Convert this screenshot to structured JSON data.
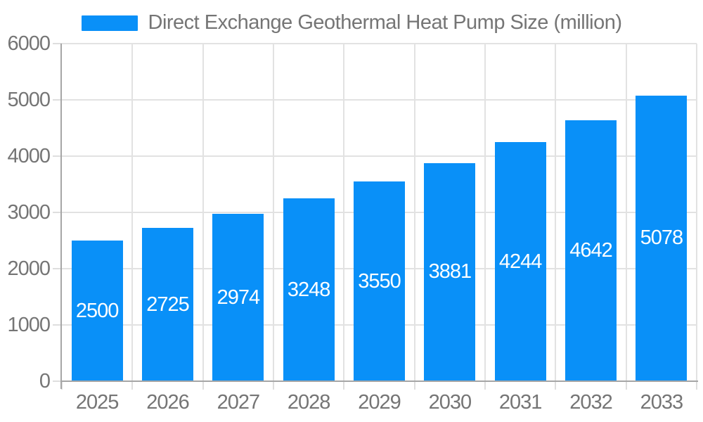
{
  "legend": {
    "label": "Direct Exchange Geothermal Heat Pump Size (million)"
  },
  "colors": {
    "bar": "#0990f8",
    "axis_label": "#757575",
    "value_label": "#ffffff",
    "gridline": "#e2e2e2",
    "tick": "#dedede",
    "axis_line": "#a6a6a6",
    "background": "#ffffff"
  },
  "chart_data": {
    "type": "bar",
    "title": "Direct Exchange Geothermal Heat Pump Size (million)",
    "series_name": "Direct Exchange Geothermal Heat Pump Size (million)",
    "categories": [
      "2025",
      "2026",
      "2027",
      "2028",
      "2029",
      "2030",
      "2031",
      "2032",
      "2033"
    ],
    "values": [
      2500,
      2725,
      2974,
      3248,
      3550,
      3881,
      4244,
      4642,
      5078
    ],
    "value_labels": [
      "2500",
      "2725",
      "2974",
      "3248",
      "3550",
      "3881",
      "4244",
      "4642",
      "5078"
    ],
    "xlabel": "",
    "ylabel": "",
    "ylim": [
      0,
      6000
    ],
    "ytick_interval": 1000,
    "yticks": [
      0,
      1000,
      2000,
      3000,
      4000,
      5000,
      6000
    ],
    "ytick_labels": [
      "0",
      "1000",
      "2000",
      "3000",
      "4000",
      "5000",
      "6000"
    ],
    "grid": true,
    "legend_position": "top-center",
    "value_label_position": "inside-center"
  }
}
